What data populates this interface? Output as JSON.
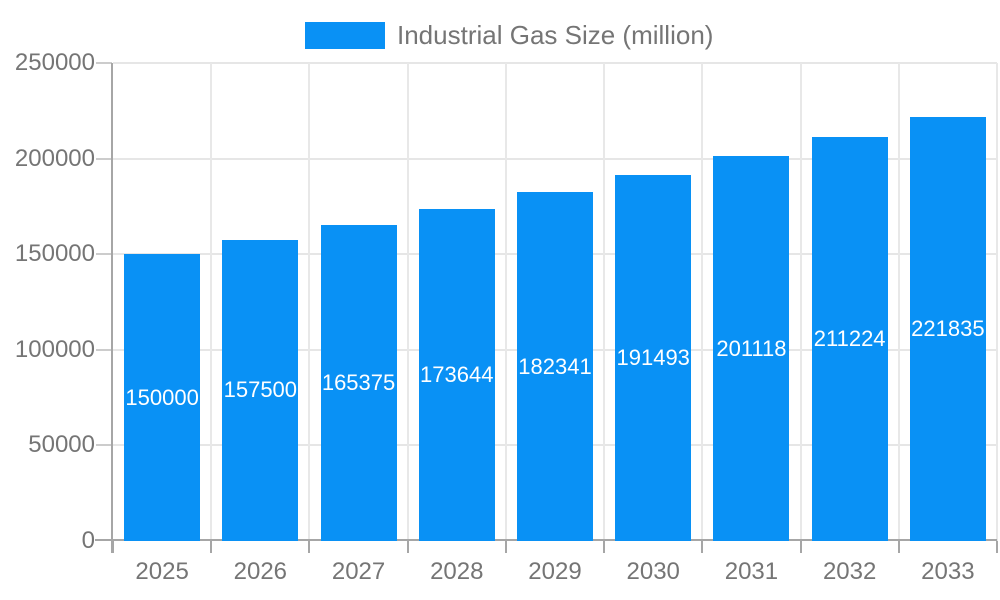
{
  "legend": {
    "label": "Industrial Gas Size (million)",
    "swatch_color": "#0991f5"
  },
  "chart_data": {
    "type": "bar",
    "title": "Industrial Gas Size (million)",
    "categories": [
      "2025",
      "2026",
      "2027",
      "2028",
      "2029",
      "2030",
      "2031",
      "2032",
      "2033"
    ],
    "values": [
      150000,
      157500,
      165375,
      173644,
      182341,
      191493,
      201118,
      211224,
      221835
    ],
    "xlabel": "",
    "ylabel": "",
    "ylim": [
      0,
      250000
    ],
    "yticks": [
      0,
      50000,
      100000,
      150000,
      200000,
      250000
    ],
    "ytick_labels": [
      "0",
      "50000",
      "100000",
      "150000",
      "200000",
      "250000"
    ],
    "grid": true,
    "legend_position": "top-center",
    "bar_color": "#0991f5",
    "bar_label_color": "#ffffff",
    "axis_color": "#a6a6a6",
    "grid_color": "#e6e6e6",
    "text_color": "#757575"
  }
}
